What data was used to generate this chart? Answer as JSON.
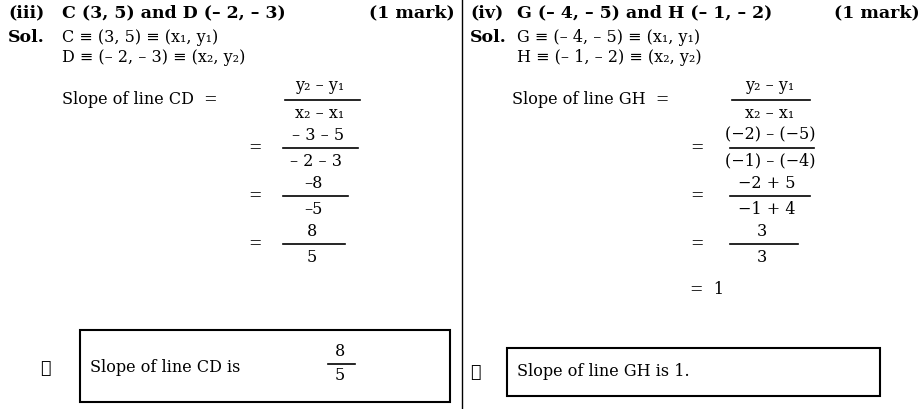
{
  "bg_color": "#ffffff",
  "left": {
    "header_num": "(iii)",
    "header_points": "C (3, 5) and D (– 2, – 3)",
    "header_mark": "(1 mark)",
    "sol_label": "Sol.",
    "line1": "C ≡ (3, 5) ≡ (x₁, y₁)",
    "line2": "D ≡ (– 2, – 3) ≡ (x₂, y₂)",
    "slope_label": "Slope of line CD  =",
    "formula_num": "y₂ – y₁",
    "formula_den": "x₂ – x₁",
    "step1_num": "– 3 – 5",
    "step1_den": "– 2 – 3",
    "step2_num": "–8",
    "step2_den": "–5",
    "step3_num": "8",
    "step3_den": "5",
    "conc_text": "Slope of line CD is ",
    "conc_frac_num": "8",
    "conc_frac_den": "5",
    "therefore": "∴"
  },
  "right": {
    "header_num": "(iv)",
    "header_points": "G (– 4, – 5) and H (– 1, – 2)",
    "header_mark": "(1 mark)",
    "sol_label": "Sol.",
    "line1": "G ≡ (– 4, – 5) ≡ (x₁, y₁)",
    "line2": "H ≡ (– 1, – 2) ≡ (x₂, y₂)",
    "slope_label": "Slope of line GH  =",
    "formula_num": "y₂ – y₁",
    "formula_den": "x₂ – x₁",
    "step1_num": "(−2) – (−5)",
    "step1_den": "(−1) – (−4)",
    "step2_num": "−2 + 5",
    "step2_den": "−1 + 4",
    "step3_num": "3",
    "step3_den": "3",
    "step4": "1",
    "conc_text": "Slope of line GH is 1.",
    "therefore": "∴"
  }
}
